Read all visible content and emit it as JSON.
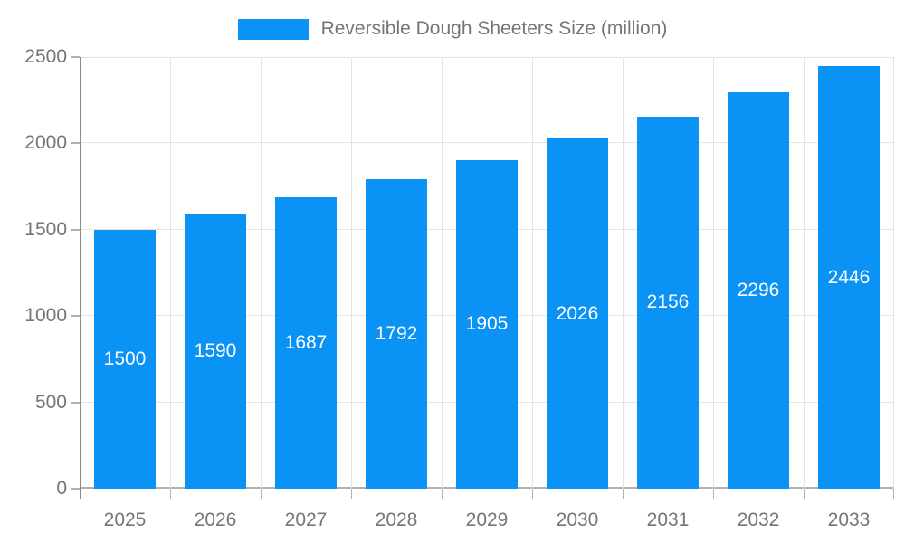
{
  "chart_data": {
    "type": "bar",
    "categories": [
      "2025",
      "2026",
      "2027",
      "2028",
      "2029",
      "2030",
      "2031",
      "2032",
      "2033"
    ],
    "series": [
      {
        "name": "Reversible Dough Sheeters Size (million)",
        "values": [
          1500,
          1590,
          1687,
          1792,
          1905,
          2026,
          2156,
          2296,
          2446
        ]
      }
    ],
    "title": "",
    "xlabel": "",
    "ylabel": "",
    "ylim": [
      0,
      2500
    ],
    "yticks": [
      0,
      500,
      1000,
      1500,
      2000,
      2500
    ],
    "grid": true,
    "legend_position": "top",
    "bar_labels_visible": true,
    "colors": {
      "bar": "#0b92f5",
      "bar_label": "#ffffff",
      "axis_text": "#757575",
      "gridline": "#e3e3e3",
      "axis_line": "#b0b0b0"
    }
  }
}
